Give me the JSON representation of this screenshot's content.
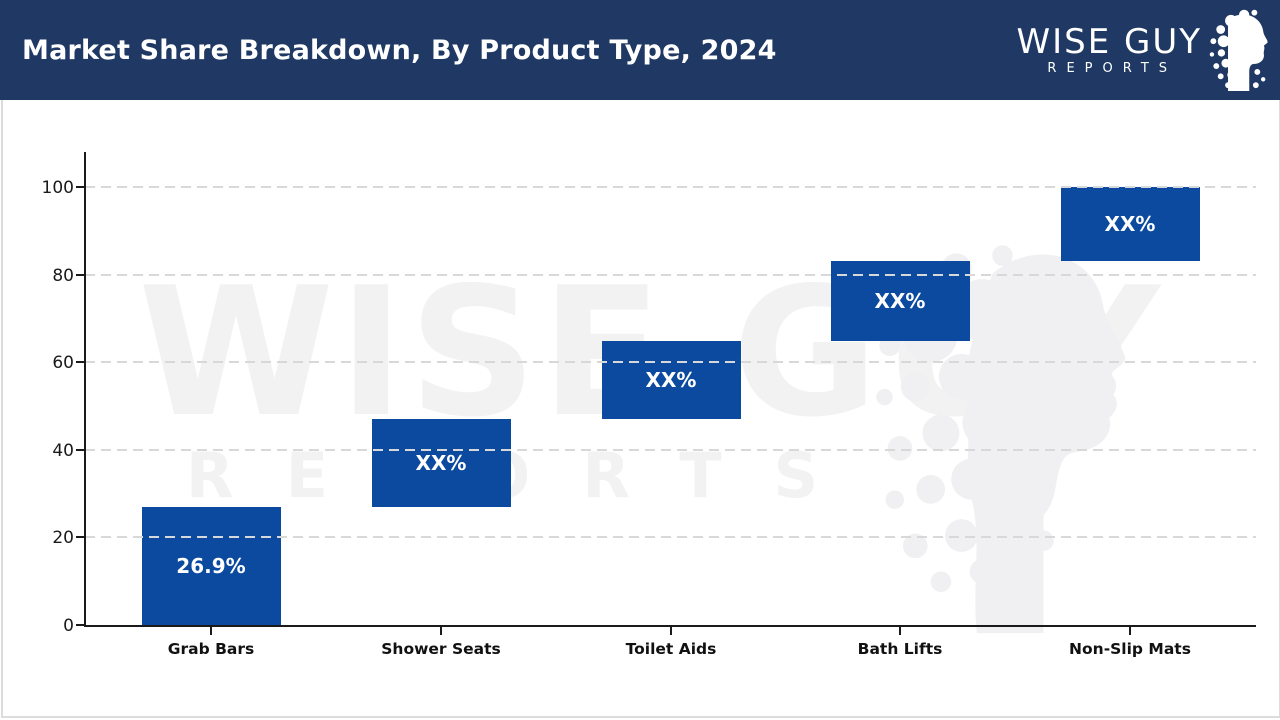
{
  "header": {
    "title": "Market Share Breakdown, By Product Type, 2024",
    "logo": {
      "line1": "WISE GUY",
      "line2": "REPORTS"
    }
  },
  "watermark": {
    "line1": "WISE GUY",
    "line2": "REPORTS"
  },
  "colors": {
    "header_bg": "#1f3864",
    "bar_blue": "#0b4a9e",
    "grid_gray": "#d8d8d8",
    "watermark_gray": "#f2f2f2",
    "label_white": "#ffffff",
    "axis_black": "#1a1a1a"
  },
  "chart_data": {
    "type": "bar",
    "subtype": "waterfall",
    "title": "Market Share Breakdown, By Product Type, 2024",
    "categories": [
      "Grab Bars",
      "Shower Seats",
      "Toilet Aids",
      "Bath Lifts",
      "Non-Slip Mats"
    ],
    "segments": [
      {
        "category": "Grab Bars",
        "start": 0,
        "end": 26.9,
        "value": 26.9,
        "label": "26.9%"
      },
      {
        "category": "Shower Seats",
        "start": 26.9,
        "end": 47.0,
        "value": 20.1,
        "label": "XX%"
      },
      {
        "category": "Toilet Aids",
        "start": 47.0,
        "end": 64.9,
        "value": 17.9,
        "label": "XX%"
      },
      {
        "category": "Bath Lifts",
        "start": 64.9,
        "end": 83.1,
        "value": 18.2,
        "label": "XX%"
      },
      {
        "category": "Non-Slip Mats",
        "start": 83.1,
        "end": 100,
        "value": 16.9,
        "label": "XX%"
      }
    ],
    "xlabel": "",
    "ylabel": "",
    "ylim": [
      0,
      108
    ],
    "yticks": [
      0,
      20,
      40,
      60,
      80,
      100
    ],
    "grid": "horizontal-dashed",
    "legend": "none"
  }
}
